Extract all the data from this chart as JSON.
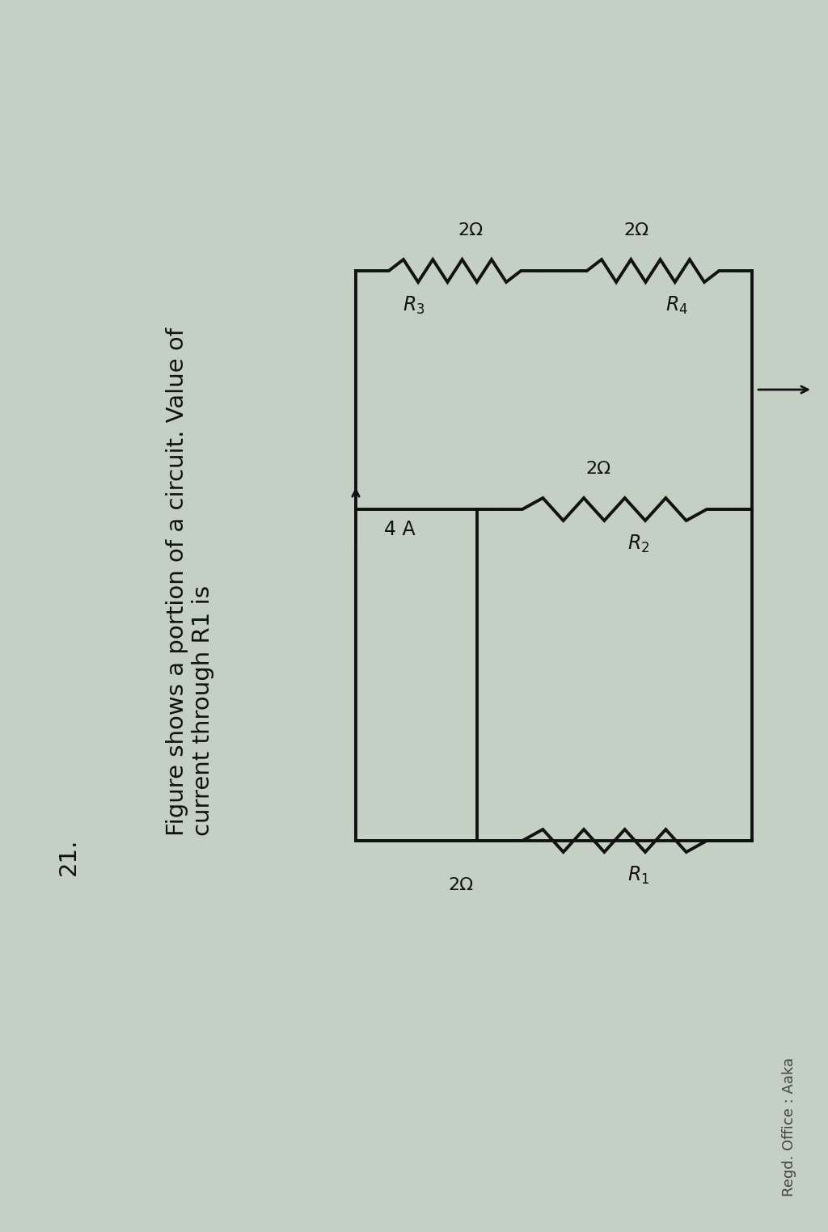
{
  "bg_color": "#c5d0c5",
  "line_color": "#111111",
  "text_color": "#111111",
  "title_number": "21.",
  "title_line1": "Figure shows a portion of a circuit. Value of",
  "title_line2": "current through R",
  "title_line2_sub": "1",
  "title_line2_end": " is",
  "title_fontsize": 21,
  "sub_fontsize": 16,
  "watermark_text": "Regd. Office : Aaka",
  "watermark_fontsize": 13,
  "resistor_label_fontsize": 16,
  "current_label": "4 A",
  "R1_label": "R₁",
  "R2_label": "R₂",
  "R3_label": "R₃",
  "R4_label": "R₄",
  "resistor_value": "2Ω"
}
